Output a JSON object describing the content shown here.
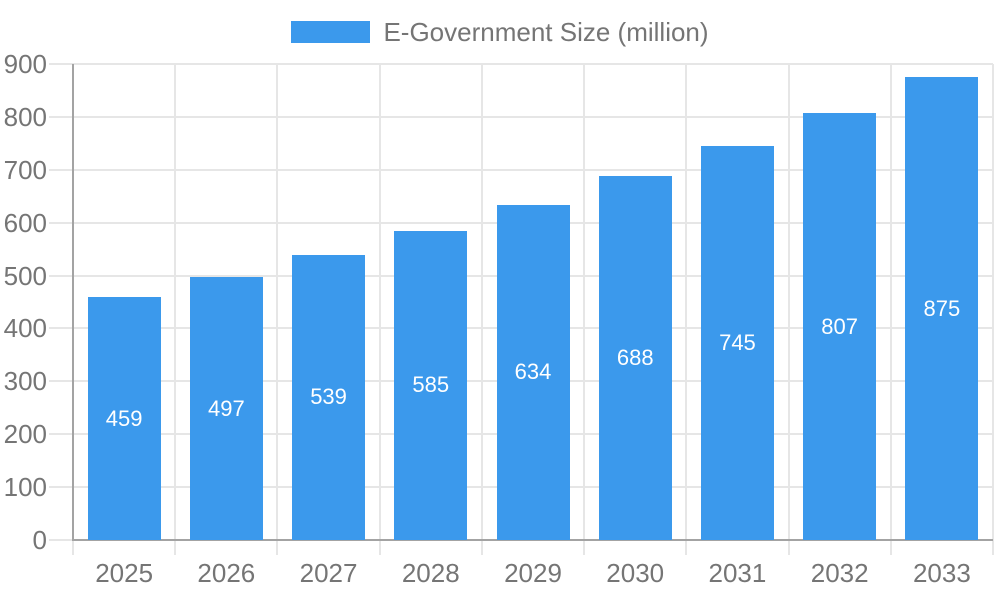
{
  "legend": {
    "label": "E-Government Size (million)"
  },
  "chart_data": {
    "type": "bar",
    "title": "E-Government Size (million)",
    "series_name": "E-Government Size (million)",
    "categories": [
      "2025",
      "2026",
      "2027",
      "2028",
      "2029",
      "2030",
      "2031",
      "2032",
      "2033"
    ],
    "values": [
      459,
      497,
      539,
      585,
      634,
      688,
      745,
      807,
      875
    ],
    "value_labels_shown": true,
    "xlabel": "",
    "ylabel": "",
    "ylim": [
      0,
      900
    ],
    "ytick_interval": 100,
    "yticks": [
      0,
      100,
      200,
      300,
      400,
      500,
      600,
      700,
      800,
      900
    ],
    "grid": true,
    "legend_position": "top",
    "colors": {
      "bar": "#3b99ec",
      "value_label": "#ffffff",
      "axis_text": "#757575",
      "gridline": "#e6e6e6",
      "axis_line": "#a3a3a3",
      "background": "#ffffff"
    }
  }
}
